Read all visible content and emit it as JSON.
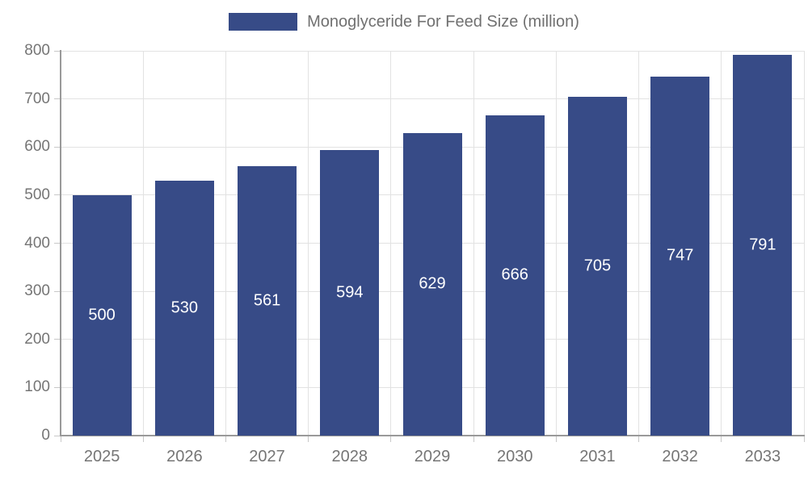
{
  "chart_data": {
    "type": "bar",
    "title": "Monoglyceride For Feed Size (million)",
    "legend": {
      "entries": [
        "Monoglyceride For Feed Size (million)"
      ],
      "position": "top"
    },
    "categories": [
      "2025",
      "2026",
      "2027",
      "2028",
      "2029",
      "2030",
      "2031",
      "2032",
      "2033"
    ],
    "values": [
      500,
      530,
      561,
      594,
      629,
      666,
      705,
      747,
      791
    ],
    "xlabel": "",
    "ylabel": "",
    "ylim": [
      0,
      800
    ],
    "yticks": [
      0,
      100,
      200,
      300,
      400,
      500,
      600,
      700,
      800
    ],
    "grid": true,
    "colors": {
      "bar": "#374b87",
      "bar_label": "#ffffff",
      "axis_text": "#757575",
      "legend_text": "#707070",
      "grid_line": "#e2e2e2",
      "axis_line": "#999999",
      "tick_mark": "#c8c8c8"
    }
  }
}
